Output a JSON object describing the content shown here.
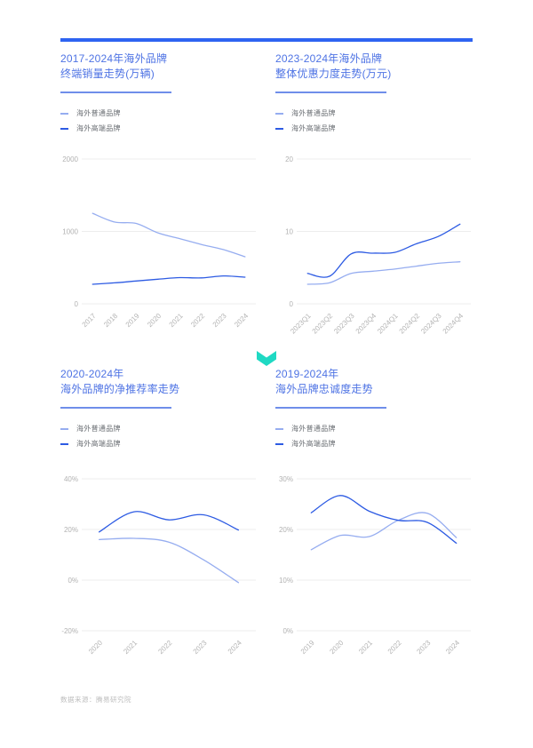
{
  "page": {
    "source_note": "数据来源：腾易研究院",
    "divider_icon": "chevron-down"
  },
  "colors": {
    "accent_bar": "#2E63F1",
    "title": "#4E73E4",
    "underline": "#6F8EEA",
    "light_line": "#96ADF0",
    "dark_line": "#2D5BE3",
    "teal_icon": "#1FD9C3",
    "grid": "#EDEDED",
    "tick_text": "#B2B2B2",
    "legend_text": "#6A6E73"
  },
  "chart_data": [
    {
      "id": "overseas-sales",
      "type": "line",
      "title_lines": [
        "2017-2024年海外品牌",
        "终端销量走势(万辆)"
      ],
      "categories": [
        "2017",
        "2018",
        "2019",
        "2020",
        "2021",
        "2022",
        "2023",
        "2024"
      ],
      "series": [
        {
          "name": "海外普通品牌",
          "role": "light",
          "values": [
            1250,
            1130,
            1110,
            980,
            900,
            820,
            750,
            650
          ]
        },
        {
          "name": "海外高端品牌",
          "role": "dark",
          "values": [
            270,
            290,
            315,
            340,
            362,
            358,
            385,
            368
          ]
        }
      ],
      "ylim": [
        0,
        2000
      ],
      "ytick_values": [
        0,
        1000,
        2000
      ],
      "ytick_labels": [
        "0",
        "1000",
        "2000"
      ],
      "grid": true,
      "legend_position": "top-left",
      "layout": {
        "grid_top": 18,
        "tick_spacing": 81.5,
        "label_space": 48
      }
    },
    {
      "id": "discount-intensity",
      "type": "line",
      "title_lines": [
        "2023-2024年海外品牌",
        "整体优惠力度走势(万元)"
      ],
      "categories": [
        "2023Q1",
        "2023Q2",
        "2023Q3",
        "2023Q4",
        "2024Q1",
        "2024Q2",
        "2024Q3",
        "2024Q4"
      ],
      "series": [
        {
          "name": "海外普通品牌",
          "role": "light",
          "values": [
            2.7,
            2.9,
            4.2,
            4.5,
            4.8,
            5.2,
            5.6,
            5.8
          ]
        },
        {
          "name": "海外高端品牌",
          "role": "dark",
          "values": [
            4.2,
            3.8,
            6.9,
            7.0,
            7.1,
            8.3,
            9.3,
            11.0
          ]
        }
      ],
      "ylim": [
        0,
        20
      ],
      "ytick_values": [
        0,
        10,
        20
      ],
      "ytick_labels": [
        "0",
        "10",
        "20"
      ],
      "grid": true,
      "legend_position": "top-left",
      "layout": {
        "grid_top": 18,
        "tick_spacing": 81.5,
        "label_space": 48
      }
    },
    {
      "id": "net-promoter-score",
      "type": "line",
      "title_lines": [
        "2020-2024年",
        "海外品牌的净推荐率走势"
      ],
      "categories": [
        "2020",
        "2021",
        "2022",
        "2023",
        "2024"
      ],
      "series": [
        {
          "name": "海外普通品牌",
          "role": "light",
          "values": [
            16,
            16.5,
            15,
            8,
            -1
          ]
        },
        {
          "name": "海外高端品牌",
          "role": "dark",
          "values": [
            19,
            27,
            23.8,
            25.8,
            19.8
          ]
        }
      ],
      "ylim": [
        -20,
        40
      ],
      "ytick_values": [
        -20,
        0,
        20,
        40
      ],
      "ytick_labels": [
        "-20%",
        "0%",
        "20%",
        "40%"
      ],
      "grid": true,
      "legend_position": "top-left",
      "layout": {
        "grid_top": 23,
        "tick_spacing": 57,
        "label_space": 46
      }
    },
    {
      "id": "brand-loyalty",
      "type": "line",
      "title_lines": [
        "2019-2024年",
        "海外品牌忠诚度走势"
      ],
      "categories": [
        "2019",
        "2020",
        "2021",
        "2022",
        "2023",
        "2024"
      ],
      "series": [
        {
          "name": "海外普通品牌",
          "role": "light",
          "values": [
            16,
            18.8,
            18.6,
            21.8,
            23.2,
            18.4
          ]
        },
        {
          "name": "海外高端品牌",
          "role": "dark",
          "values": [
            23.3,
            26.7,
            23.6,
            21.8,
            21.4,
            17.3
          ]
        }
      ],
      "ylim": [
        0,
        30
      ],
      "ytick_values": [
        0,
        10,
        20,
        30
      ],
      "ytick_labels": [
        "0%",
        "10%",
        "20%",
        "30%"
      ],
      "grid": true,
      "legend_position": "top-left",
      "layout": {
        "grid_top": 23,
        "tick_spacing": 57,
        "label_space": 46
      }
    }
  ]
}
